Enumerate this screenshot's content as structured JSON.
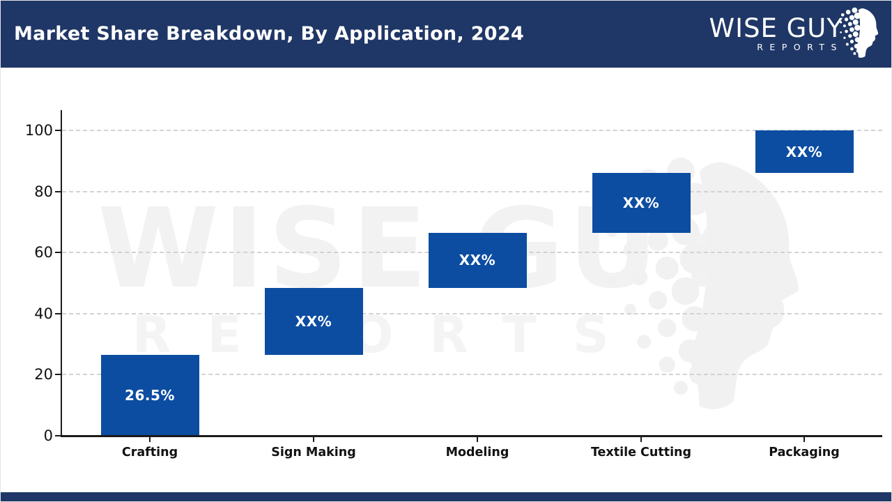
{
  "header": {
    "title": "Market Share Breakdown, By Application, 2024",
    "logo": {
      "line1": "WISE GUY",
      "line2": "REPORTS"
    }
  },
  "watermark": {
    "line1": "WISE GUY",
    "line2": "REPORTS"
  },
  "colors": {
    "header_bg": "#1f3766",
    "bar": "#0c4da2",
    "bar_label": "#ffffff",
    "grid": "#d2d2d2",
    "axis": "#1a1a1a"
  },
  "chart_data": {
    "type": "bar",
    "variant": "waterfall",
    "title": "Market Share Breakdown, By Application, 2024",
    "categories": [
      "Crafting",
      "Sign Making",
      "Modeling",
      "Textile Cutting",
      "Packaging"
    ],
    "series": [
      {
        "name": "Market Share",
        "segments": [
          {
            "category": "Crafting",
            "start": 0,
            "end": 26.5,
            "label": "26.5%"
          },
          {
            "category": "Sign Making",
            "start": 26.5,
            "end": 48.5,
            "label": "XX%"
          },
          {
            "category": "Modeling",
            "start": 48.5,
            "end": 66.5,
            "label": "XX%"
          },
          {
            "category": "Textile Cutting",
            "start": 66.5,
            "end": 86,
            "label": "XX%"
          },
          {
            "category": "Packaging",
            "start": 86,
            "end": 100,
            "label": "XX%"
          }
        ]
      }
    ],
    "xlabel": "",
    "ylabel": "",
    "ylim": [
      0,
      100
    ],
    "yticks": [
      0,
      20,
      40,
      60,
      80,
      100
    ],
    "grid": "horizontal-dashed",
    "legend": "none"
  }
}
